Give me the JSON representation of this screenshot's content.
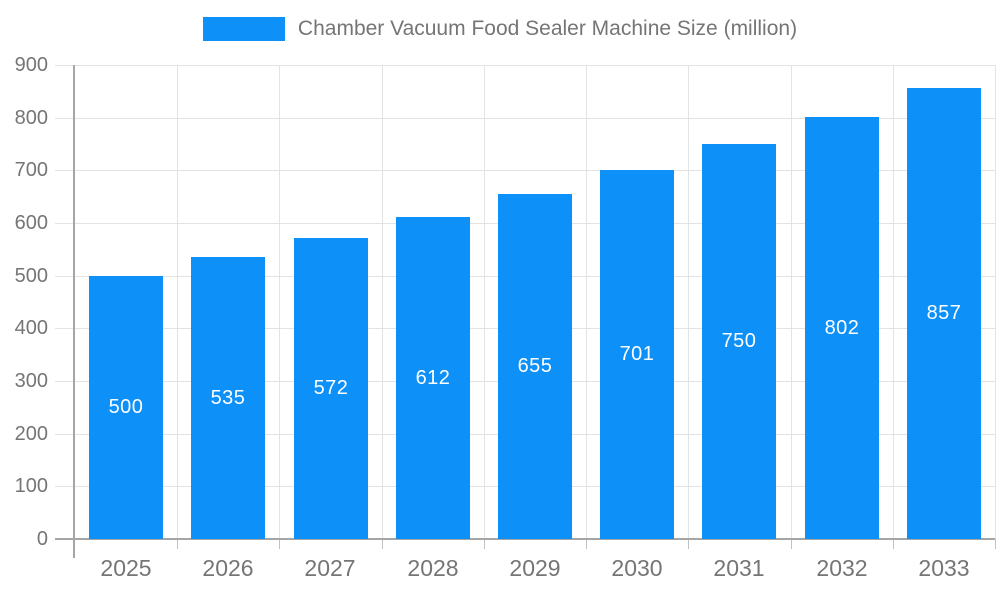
{
  "legend": {
    "label": "Chamber Vacuum Food Sealer Machine Size (million)"
  },
  "colors": {
    "bar": "#0d90f8",
    "grid": "#e3e3e3",
    "axis": "#a6a6a6",
    "tick": "#c2c2c2",
    "text": "#757575",
    "value_label": "#ffffff",
    "background": "#ffffff"
  },
  "chart_data": {
    "type": "bar",
    "title": "Chamber Vacuum Food Sealer Machine Size (million)",
    "categories": [
      "2025",
      "2026",
      "2027",
      "2028",
      "2029",
      "2030",
      "2031",
      "2032",
      "2033"
    ],
    "values": [
      500,
      535,
      572,
      612,
      655,
      701,
      750,
      802,
      857
    ],
    "xlabel": "",
    "ylabel": "",
    "ylim": [
      0,
      900
    ],
    "ytick_step": 100,
    "ytick_labels": [
      "0",
      "100",
      "200",
      "300",
      "400",
      "500",
      "600",
      "700",
      "800",
      "900"
    ],
    "grid": true,
    "legend_position": "top-center",
    "value_labels": "inside-center",
    "series_name": "Chamber Vacuum Food Sealer Machine Size (million)"
  }
}
